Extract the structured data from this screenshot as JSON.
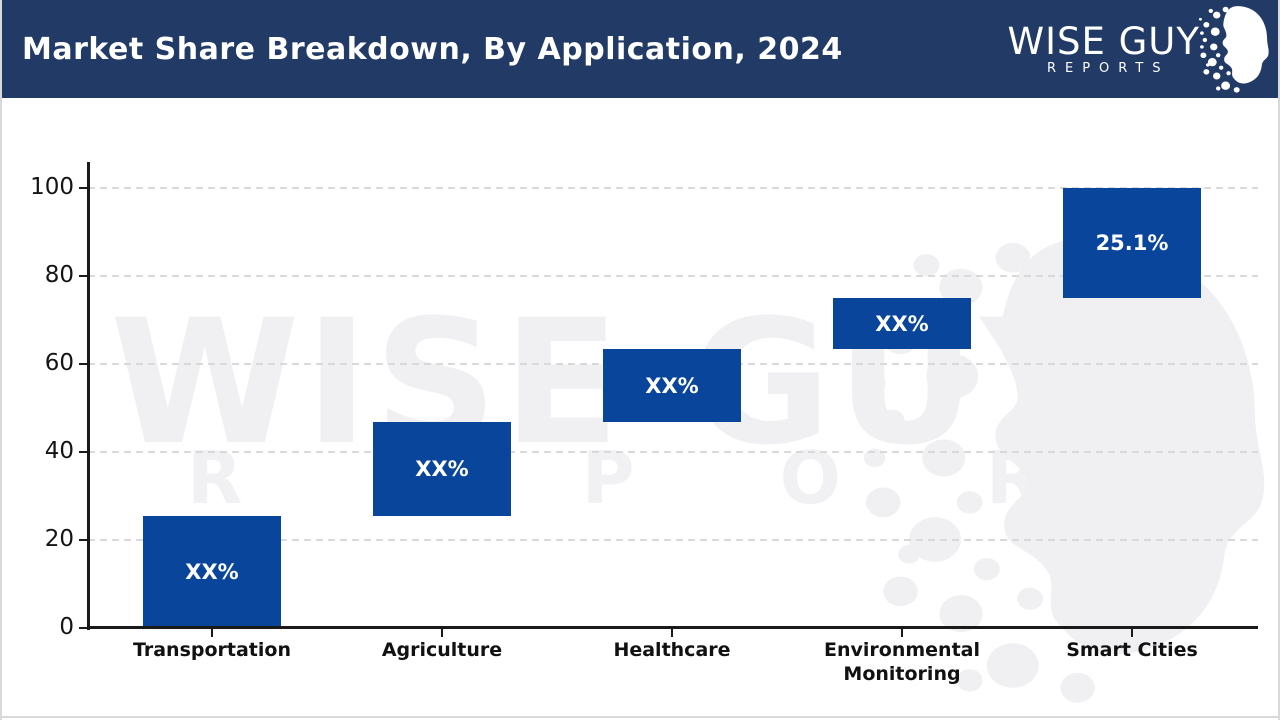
{
  "header": {
    "title": "Market Share Breakdown, By Application, 2024",
    "logo": {
      "line1": "WISE GUY",
      "line2": "REPORTS"
    }
  },
  "watermark": {
    "line1": "WISE GUY",
    "line2": "R E P O R T S"
  },
  "colors": {
    "header_bg": "#213a66",
    "bar": "#09459a",
    "grid": "#d9d9d9",
    "axis": "#1a1a1a",
    "bar_label": "#ffffff",
    "watermark": "#f0f0f3"
  },
  "chart_data": {
    "type": "bar",
    "subtype": "waterfall",
    "title": "Market Share Breakdown, By Application, 2024",
    "categories": [
      "Transportation",
      "Agriculture",
      "Healthcare",
      "Environmental Monitoring",
      "Smart Cities"
    ],
    "segments": [
      {
        "category": "Transportation",
        "start": 0,
        "end": 25.3,
        "value_label": "XX%"
      },
      {
        "category": "Agriculture",
        "start": 25.3,
        "end": 46.7,
        "value_label": "XX%"
      },
      {
        "category": "Healthcare",
        "start": 46.7,
        "end": 63.3,
        "value_label": "XX%"
      },
      {
        "category": "Environmental Monitoring",
        "start": 63.3,
        "end": 74.9,
        "value_label": "XX%"
      },
      {
        "category": "Smart Cities",
        "start": 74.9,
        "end": 100,
        "value_label": "25.1%"
      }
    ],
    "xlabel": "",
    "ylabel": "",
    "yticks": [
      0,
      20,
      40,
      60,
      80,
      100
    ],
    "ylim": [
      0,
      106
    ],
    "grid": "dashed-horizontal",
    "legend": "none"
  }
}
